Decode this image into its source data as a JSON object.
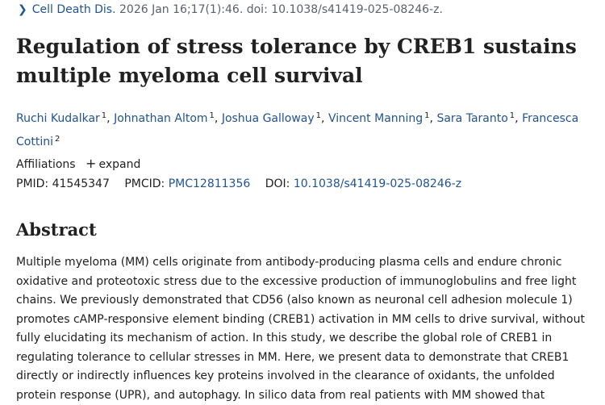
{
  "citation": {
    "journal": "Cell Death Dis.",
    "details": "2026 Jan 16;17(1):46. doi: 10.1038/s41419-025-08246-z."
  },
  "title": "Regulation of stress tolerance by CREB1 sustains multiple myeloma cell survival",
  "authors": [
    {
      "name": "Ruchi Kudalkar",
      "aff": "1"
    },
    {
      "name": "Johnathan Altom",
      "aff": "1"
    },
    {
      "name": "Joshua Galloway",
      "aff": "1"
    },
    {
      "name": "Vincent Manning",
      "aff": "1"
    },
    {
      "name": "Sara Taranto",
      "aff": "1"
    },
    {
      "name": "Francesca Cottini",
      "aff": "2"
    }
  ],
  "affiliations": {
    "label": "Affiliations",
    "expand": "expand"
  },
  "ids": {
    "pmid_label": "PMID:",
    "pmid": "41545347",
    "pmcid_label": "PMCID:",
    "pmcid": "PMC12811356",
    "doi_label": "DOI:",
    "doi": "10.1038/s41419-025-08246-z"
  },
  "abstract": {
    "heading": "Abstract",
    "text": "Multiple myeloma (MM) cells originate from antibody-producing plasma cells and endure chronic oxidative and proteotoxic stress due to the excessive production of immunoglobulins and free light chains. We previously demonstrated that CD56 (also known as neuronal cell adhesion molecule 1) promotes cAMP-responsive element binding (CREB1) activation in MM cells to drive survival, without fully elucidating its mechanism of action. In this study, we describe the global role of CREB1 in regulating tolerance to cellular stresses in MM. Here, we present data to demonstrate that CREB1 directly or indirectly influences key proteins involved in the clearance of oxidants, the unfolded protein response (UPR), and autophagy. In silico data from real patients with MM showed that"
  }
}
